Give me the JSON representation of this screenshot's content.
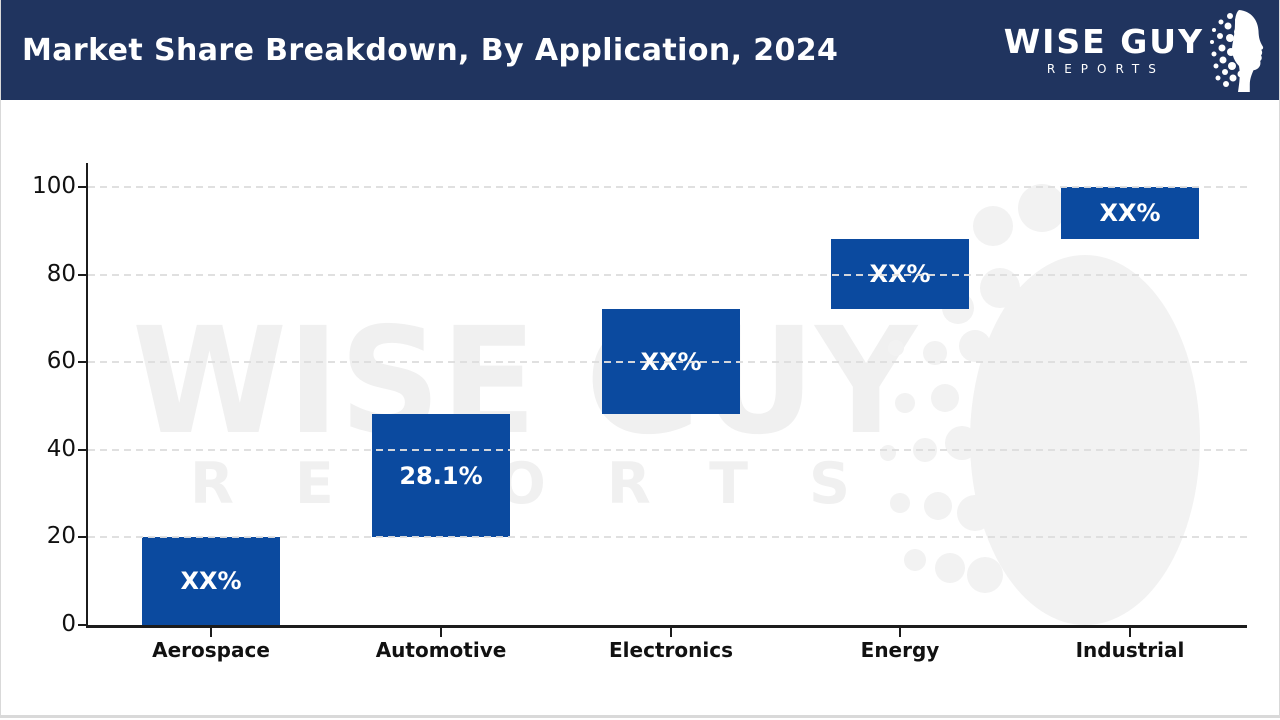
{
  "header": {
    "title": "Market Share Breakdown, By Application, 2024",
    "bg_color": "#20345f",
    "logo": {
      "brand_line1": "WISE GUY",
      "brand_line2": "REPORTS"
    }
  },
  "watermark": {
    "line1": "WISE GUY",
    "line2": "REPORTS"
  },
  "chart_data": {
    "type": "bar",
    "variant": "waterfall",
    "title": "Market Share Breakdown, By Application, 2024",
    "categories": [
      "Aerospace",
      "Automotive",
      "Electronics",
      "Energy",
      "Industrial"
    ],
    "series": [
      {
        "name": "Market Share",
        "segments": [
          {
            "category": "Aerospace",
            "start": 0,
            "end": 20,
            "label": "XX%"
          },
          {
            "category": "Automotive",
            "start": 20,
            "end": 48.1,
            "label": "28.1%"
          },
          {
            "category": "Electronics",
            "start": 48.1,
            "end": 72.1,
            "label": "XX%"
          },
          {
            "category": "Energy",
            "start": 72.1,
            "end": 88.1,
            "label": "XX%"
          },
          {
            "category": "Industrial",
            "start": 88.1,
            "end": 100.1,
            "label": "XX%"
          }
        ]
      }
    ],
    "y_ticks": [
      "0",
      "20",
      "40",
      "60",
      "80",
      "100"
    ],
    "ylim": [
      0,
      105
    ],
    "xlabel": "",
    "ylabel": "",
    "grid": "horizontal-dashed",
    "legend": "none",
    "bar_color": "#0b4a9f",
    "value_label_color": "#ffffff"
  }
}
